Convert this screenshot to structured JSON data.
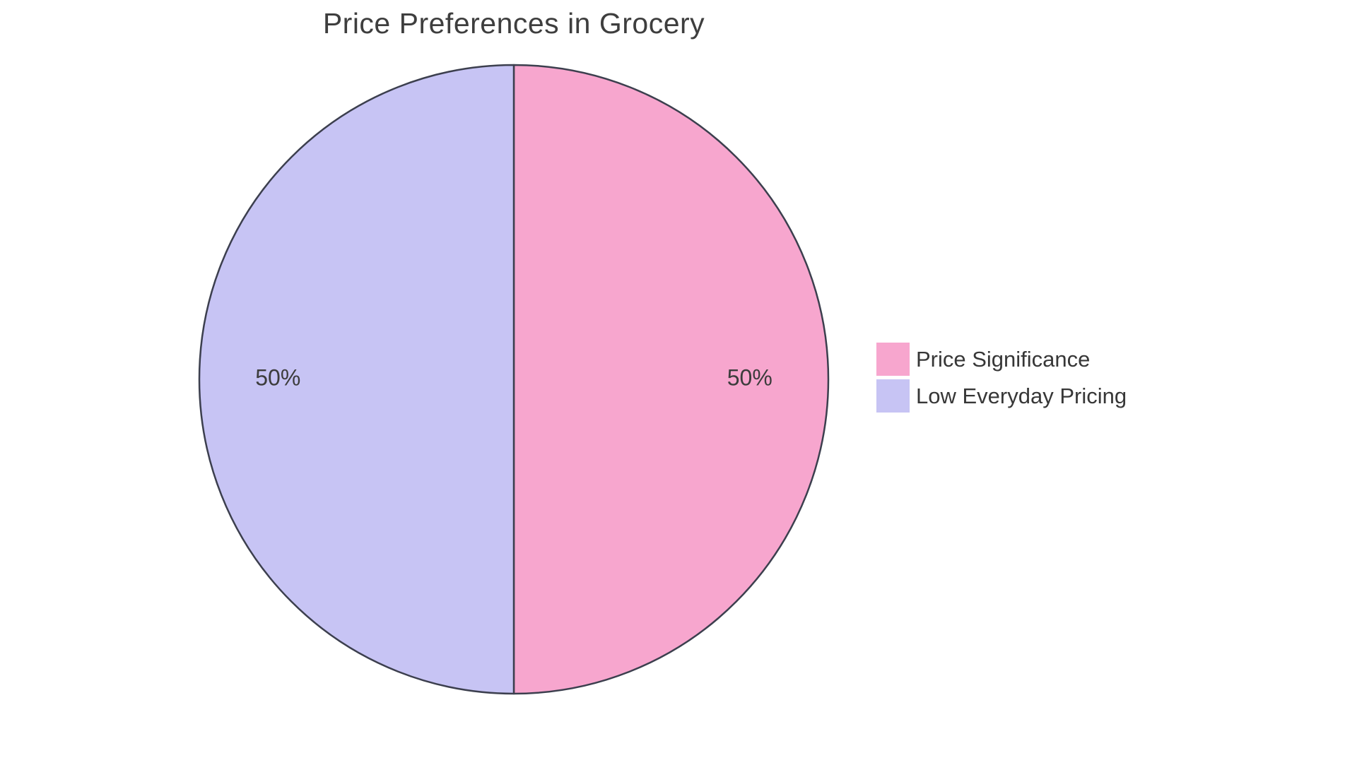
{
  "page": {
    "background_color": "#FFFFFF"
  },
  "chart_data": {
    "type": "pie",
    "title": "Price Preferences in Grocery",
    "slices": [
      {
        "label": "Price Significance",
        "value": 50,
        "percent_label": "50%",
        "color": "#F7A6CE"
      },
      {
        "label": "Low Everyday Pricing",
        "value": 50,
        "percent_label": "50%",
        "color": "#C7C4F4"
      }
    ],
    "stroke_color": "#3C3F4E",
    "label_color": "#3C3C3C",
    "start_angle_deg": -90,
    "direction": "clockwise",
    "legend_position": "right",
    "grid": false
  }
}
